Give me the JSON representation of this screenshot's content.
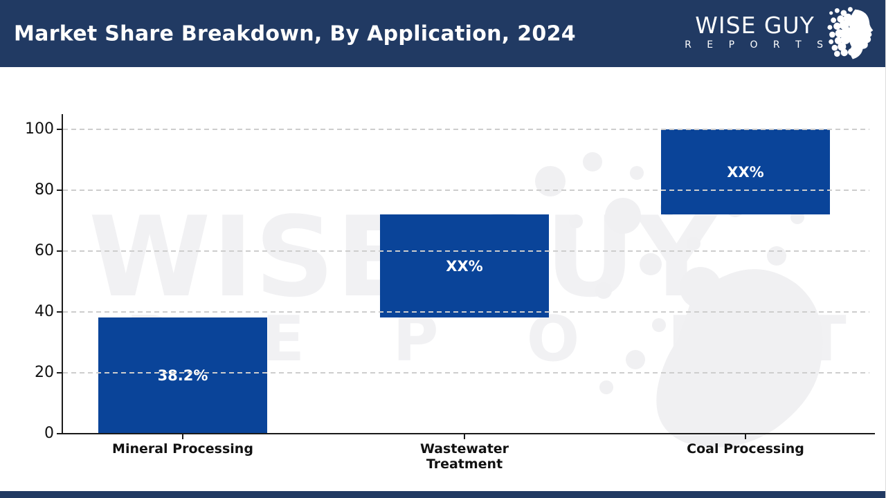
{
  "header": {
    "title": "Market Share Breakdown, By Application, 2024",
    "logo": {
      "line1": "WISE GUY",
      "line2": "R E P O R T S"
    },
    "bg_color": "#213a63"
  },
  "watermark": {
    "line1": "WISE GUY",
    "line2": "R E P O R T S"
  },
  "chart_data": {
    "type": "bar",
    "variant": "floating-waterfall",
    "title": "Market Share Breakdown, By Application, 2024",
    "categories": [
      "Mineral Processing",
      "Wastewater Treatment",
      "Coal Processing"
    ],
    "categories_display": [
      [
        "Mineral Processing"
      ],
      [
        "Wastewater",
        "Treatment"
      ],
      [
        "Coal Processing"
      ]
    ],
    "bars": [
      {
        "category": "Mineral Processing",
        "start": 0,
        "end": 38.2,
        "value_label": "38.2%"
      },
      {
        "category": "Wastewater Treatment",
        "start": 38.2,
        "end": 72,
        "value_label": "XX%"
      },
      {
        "category": "Coal Processing",
        "start": 72,
        "end": 100,
        "value_label": "XX%"
      }
    ],
    "ylim": [
      0,
      100
    ],
    "yticks": [
      0,
      20,
      40,
      60,
      80,
      100
    ],
    "grid": {
      "axis": "y",
      "style": "dashed",
      "on_top": true
    },
    "legend": "none",
    "colors": {
      "bar": "#0a4499",
      "bar_label": "#ffffff",
      "axis": "#1a1a1a",
      "tick_label": "#111111",
      "gridline": "#cdcdcd",
      "header_bg": "#213a63",
      "watermark": "#f1f1f3"
    }
  }
}
